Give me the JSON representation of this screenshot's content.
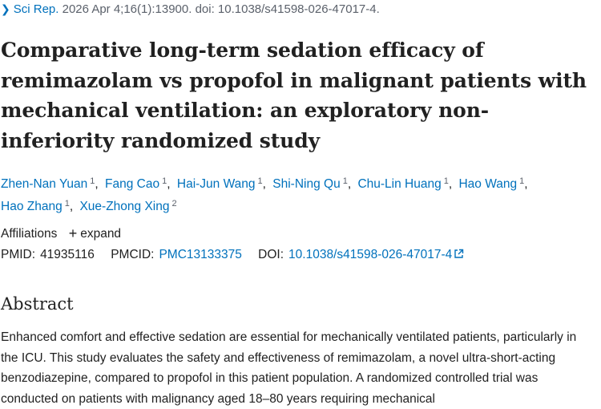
{
  "citation": {
    "journal": "Sci Rep.",
    "details": "2026 Apr 4;16(1):13900. doi: 10.1038/s41598-026-47017-4."
  },
  "title": "Comparative long-term sedation efficacy of remimazolam vs propofol in malignant patients with mechanical ventilation: an exploratory non-inferiority randomized study",
  "authors": [
    {
      "name": "Zhen-Nan Yuan",
      "aff": "1"
    },
    {
      "name": "Fang Cao",
      "aff": "1"
    },
    {
      "name": "Hai-Jun Wang",
      "aff": "1"
    },
    {
      "name": "Shi-Ning Qu",
      "aff": "1"
    },
    {
      "name": "Chu-Lin Huang",
      "aff": "1"
    },
    {
      "name": "Hao Wang",
      "aff": "1"
    },
    {
      "name": "Hao Zhang",
      "aff": "1"
    },
    {
      "name": "Xue-Zhong Xing",
      "aff": "2"
    }
  ],
  "affiliations": {
    "label": "Affiliations",
    "expand_label": "expand"
  },
  "identifiers": {
    "pmid_label": "PMID:",
    "pmid": "41935116",
    "pmcid_label": "PMCID:",
    "pmcid": "PMC13133375",
    "doi_label": "DOI:",
    "doi": "10.1038/s41598-026-47017-4"
  },
  "abstract": {
    "heading": "Abstract",
    "text": "Enhanced comfort and effective sedation are essential for mechanically ventilated patients, particularly in the ICU. This study evaluates the safety and effectiveness of remimazolam, a novel ultra-short-acting benzodiazepine, compared to propofol in this patient population. A randomized controlled trial was conducted on patients with malignancy aged 18–80 years requiring mechanical"
  },
  "colors": {
    "link": "#0071bc",
    "text": "#212121",
    "muted": "#5b616b"
  }
}
